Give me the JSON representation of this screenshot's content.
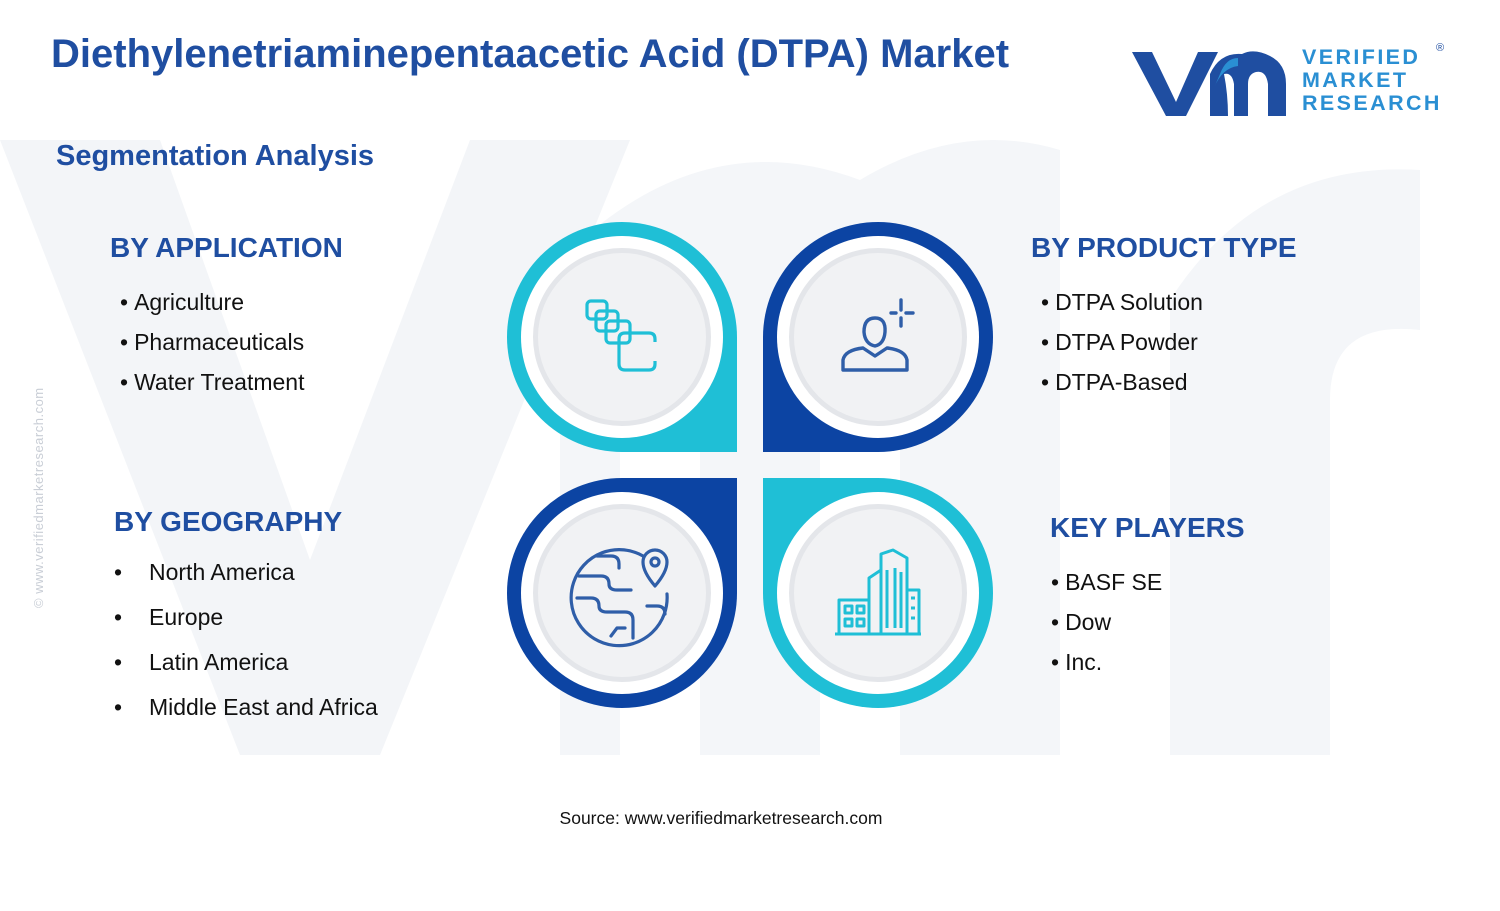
{
  "header": {
    "title": "Diethylenetriaminepentaacetic Acid (DTPA) Market",
    "subtitle": "Segmentation Analysis"
  },
  "logo": {
    "line1": "VERIFIED",
    "line2": "MARKET",
    "line3": "RESEARCH",
    "registered": "®"
  },
  "side_note": "© www.verifiedmarketresearch.com",
  "segments": {
    "application": {
      "title": "BY APPLICATION",
      "items": [
        "Agriculture",
        "Pharmaceuticals",
        "Water Treatment"
      ],
      "icon": "stacked-squares-icon"
    },
    "product_type": {
      "title": "BY PRODUCT TYPE",
      "items": [
        "DTPA Solution",
        "DTPA Powder",
        "DTPA-Based"
      ],
      "icon": "user-sparkle-icon"
    },
    "geography": {
      "title": "BY GEOGRAPHY",
      "items": [
        "North America",
        "Europe",
        "Latin America",
        "Middle East and Africa"
      ],
      "icon": "globe-pin-icon"
    },
    "key_players": {
      "title": "KEY PLAYERS",
      "items": [
        "BASF SE",
        "Dow",
        "Inc."
      ],
      "icon": "buildings-icon"
    }
  },
  "footer": {
    "source": "Source: www.verifiedmarketresearch.com"
  },
  "colors": {
    "navy": "#1f4ea1",
    "dark_blue": "#0c44a3",
    "cyan": "#1fbfd6",
    "icon_blue": "#2f5ea8",
    "watermark": "#f3f5f8"
  }
}
